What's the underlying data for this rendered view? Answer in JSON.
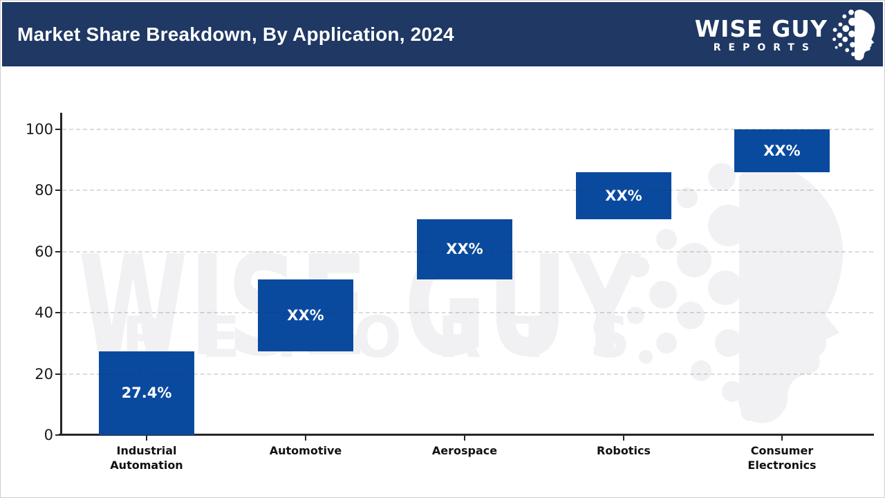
{
  "header": {
    "title": "Market Share Breakdown, By Application, 2024",
    "bg_color": "#1F3864",
    "logo": {
      "line1": "WISE GUY",
      "line2": "REPORTS"
    }
  },
  "watermark": {
    "line1": "WISE GUY",
    "line2": "REPORTS"
  },
  "icons": {
    "logo_head": "dotted-head-profile",
    "watermark_head": "dotted-head-profile"
  },
  "chart_data": {
    "type": "bar",
    "subtype": "waterfall",
    "title": "Market Share Breakdown, By Application, 2024",
    "xlabel": "",
    "ylabel": "",
    "ylim": [
      0,
      100
    ],
    "yticks": [
      0,
      20,
      40,
      60,
      80,
      100
    ],
    "grid": "horizontal-dashed",
    "legend": "none",
    "bar_color": "#0A4A9E",
    "label_color": "#FFFFFF",
    "categories": [
      "Industrial Automation",
      "Automotive",
      "Aerospace",
      "Robotics",
      "Consumer Electronics"
    ],
    "category_lines": [
      [
        "Industrial",
        "Automation"
      ],
      [
        "Automotive"
      ],
      [
        "Aerospace"
      ],
      [
        "Robotics"
      ],
      [
        "Consumer",
        "Electronics"
      ]
    ],
    "segments": [
      {
        "category": "Industrial Automation",
        "start": 0,
        "end": 27.4,
        "label": "27.4%"
      },
      {
        "category": "Automotive",
        "start": 27.4,
        "end": 50.9,
        "label": "XX%"
      },
      {
        "category": "Aerospace",
        "start": 50.9,
        "end": 70.6,
        "label": "XX%"
      },
      {
        "category": "Robotics",
        "start": 70.6,
        "end": 86.0,
        "label": "XX%"
      },
      {
        "category": "Consumer Electronics",
        "start": 86.0,
        "end": 100,
        "label": "XX%"
      }
    ]
  }
}
